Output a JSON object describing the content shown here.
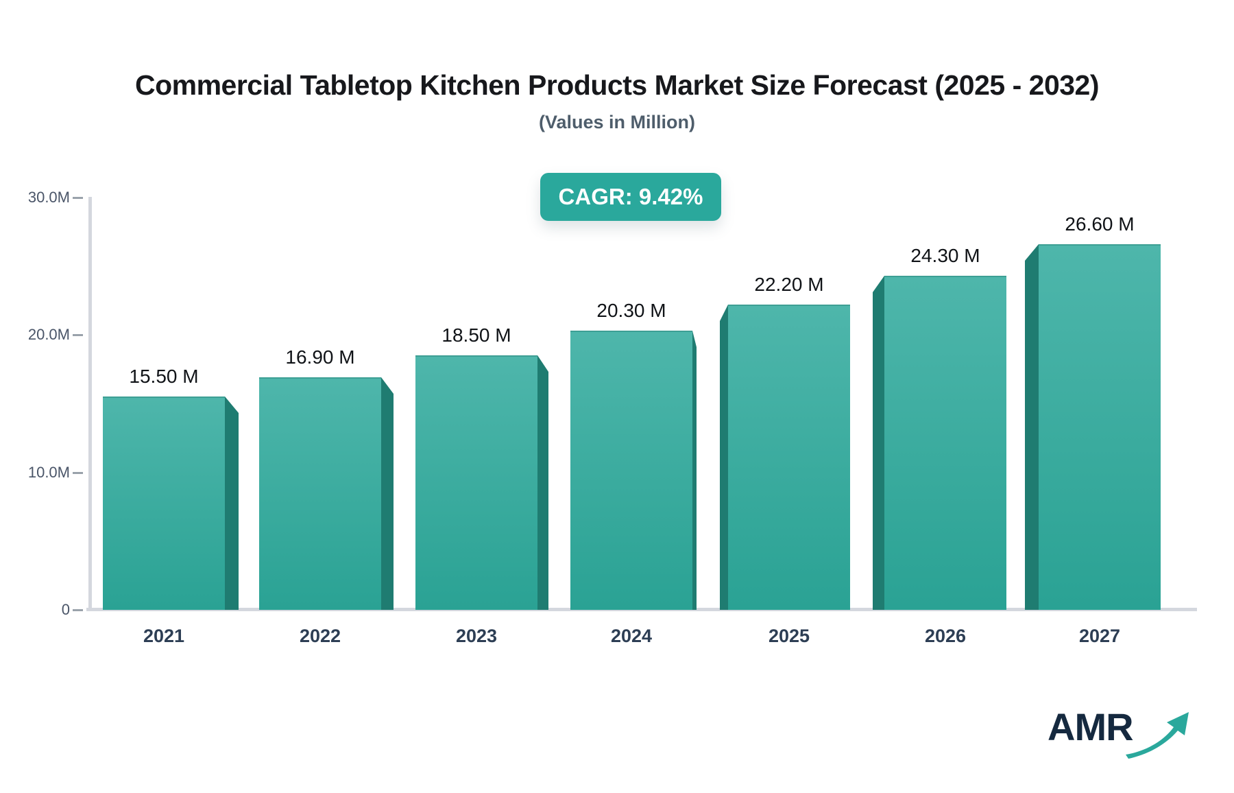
{
  "title": "Commercial Tabletop Kitchen Products Market Size Forecast (2025 - 2032)",
  "subtitle": "(Values in Million)",
  "cagr": {
    "label": "CAGR: 9.42%",
    "value": "9.42%"
  },
  "logo": {
    "text": "AMR",
    "arrow_icon": "trending-up-arrow-icon"
  },
  "colors": {
    "accent_teal": "#2aa89c",
    "bar_gradient_top": "#4eb6ab",
    "bar_gradient_bottom": "#2aa294",
    "bar_side_face": "#1f7c71",
    "axis_line": "#d4d7de",
    "tick_label": "#4a5568",
    "category_label": "#2d3e54",
    "logo_navy": "#15293f"
  },
  "chart_data": {
    "type": "bar",
    "title": "Commercial Tabletop Kitchen Products Market Size Forecast (2025 - 2032)",
    "subtitle": "(Values in Million)",
    "unit": "Million",
    "cagr_annotation": "CAGR: 9.42%",
    "categories": [
      "2021",
      "2022",
      "2023",
      "2024",
      "2025",
      "2026",
      "2027"
    ],
    "values": [
      15.5,
      16.9,
      18.5,
      20.3,
      22.2,
      24.3,
      26.6
    ],
    "value_labels": [
      "15.50 M",
      "16.90 M",
      "18.50 M",
      "20.30 M",
      "22.20 M",
      "24.30 M",
      "26.60 M"
    ],
    "ylim": [
      0,
      30
    ],
    "y_ticks": [
      {
        "value": 30,
        "label": "30.0M"
      },
      {
        "value": 20,
        "label": "20.0M"
      },
      {
        "value": 10,
        "label": "10.0M"
      },
      {
        "value": 0,
        "label": "0"
      }
    ],
    "grid": false,
    "legend": false,
    "bar_style": "3d-teal-gradient"
  }
}
